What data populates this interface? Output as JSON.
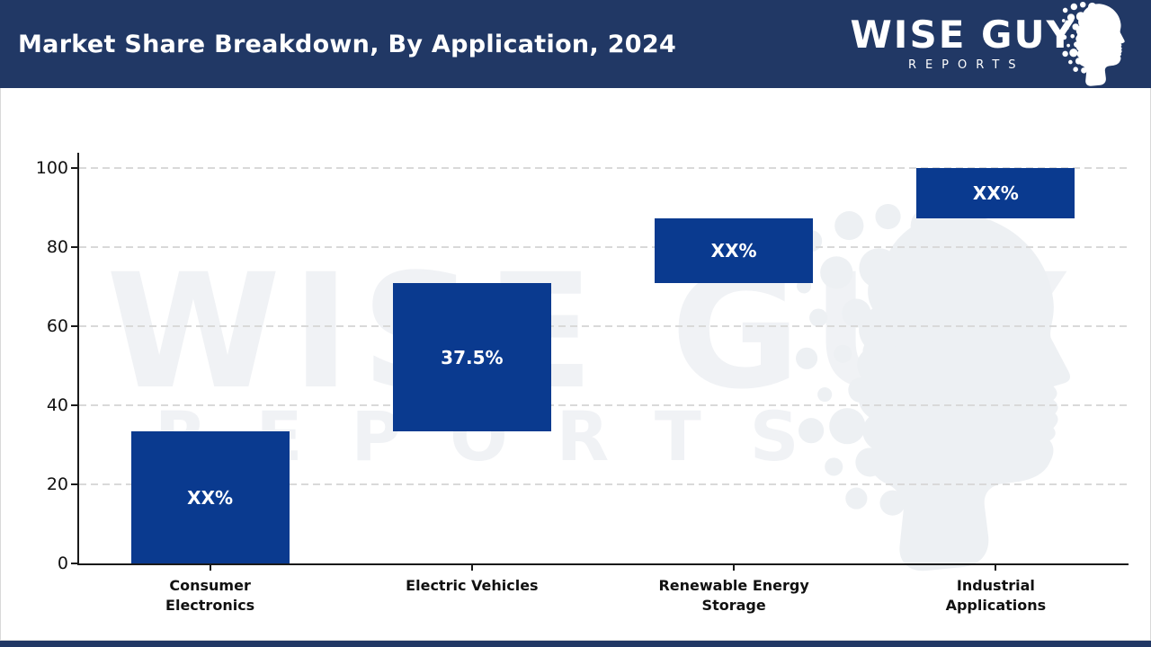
{
  "header": {
    "logo": {
      "line1": "WISE GUY",
      "line2": "REPORTS"
    }
  },
  "watermark": {
    "line1": "WISE GUY",
    "line2": "REPORTS"
  },
  "chart_data": {
    "type": "bar",
    "subtype": "waterfall",
    "title": "Market Share Breakdown, By Application, 2024",
    "xlabel": "",
    "ylabel": "",
    "ylim": [
      0,
      100
    ],
    "yticks": [
      0,
      20,
      40,
      60,
      80,
      100
    ],
    "grid": {
      "style": "dashed",
      "color": "#d9d9d9",
      "axis": "y"
    },
    "legend": "none",
    "bar_color": "#0a3a8f",
    "label_color": "#ffffff",
    "categories": [
      "Consumer Electronics",
      "Electric Vehicles",
      "Renewable Energy Storage",
      "Industrial Applications"
    ],
    "category_lines": [
      [
        "Consumer",
        "Electronics"
      ],
      [
        "Electric Vehicles"
      ],
      [
        "Renewable Energy",
        "Storage"
      ],
      [
        "Industrial",
        "Applications"
      ]
    ],
    "segments": [
      {
        "category": "Consumer Electronics",
        "start": 0,
        "end": 33.3,
        "value": 33.3,
        "label": "XX%"
      },
      {
        "category": "Electric Vehicles",
        "start": 33.3,
        "end": 70.8,
        "value": 37.5,
        "label": "37.5%"
      },
      {
        "category": "Renewable Energy Storage",
        "start": 70.8,
        "end": 87.2,
        "value": 16.4,
        "label": "XX%"
      },
      {
        "category": "Industrial Applications",
        "start": 87.2,
        "end": 100,
        "value": 12.8,
        "label": "XX%"
      }
    ]
  },
  "colors": {
    "header_navy": "#213865",
    "footer_navy": "#213865",
    "bar_blue": "#0a3a8f",
    "watermark_gray": "#f0f2f5",
    "grid_gray": "#d9d9d9",
    "axis_black": "#1a1a1a"
  }
}
